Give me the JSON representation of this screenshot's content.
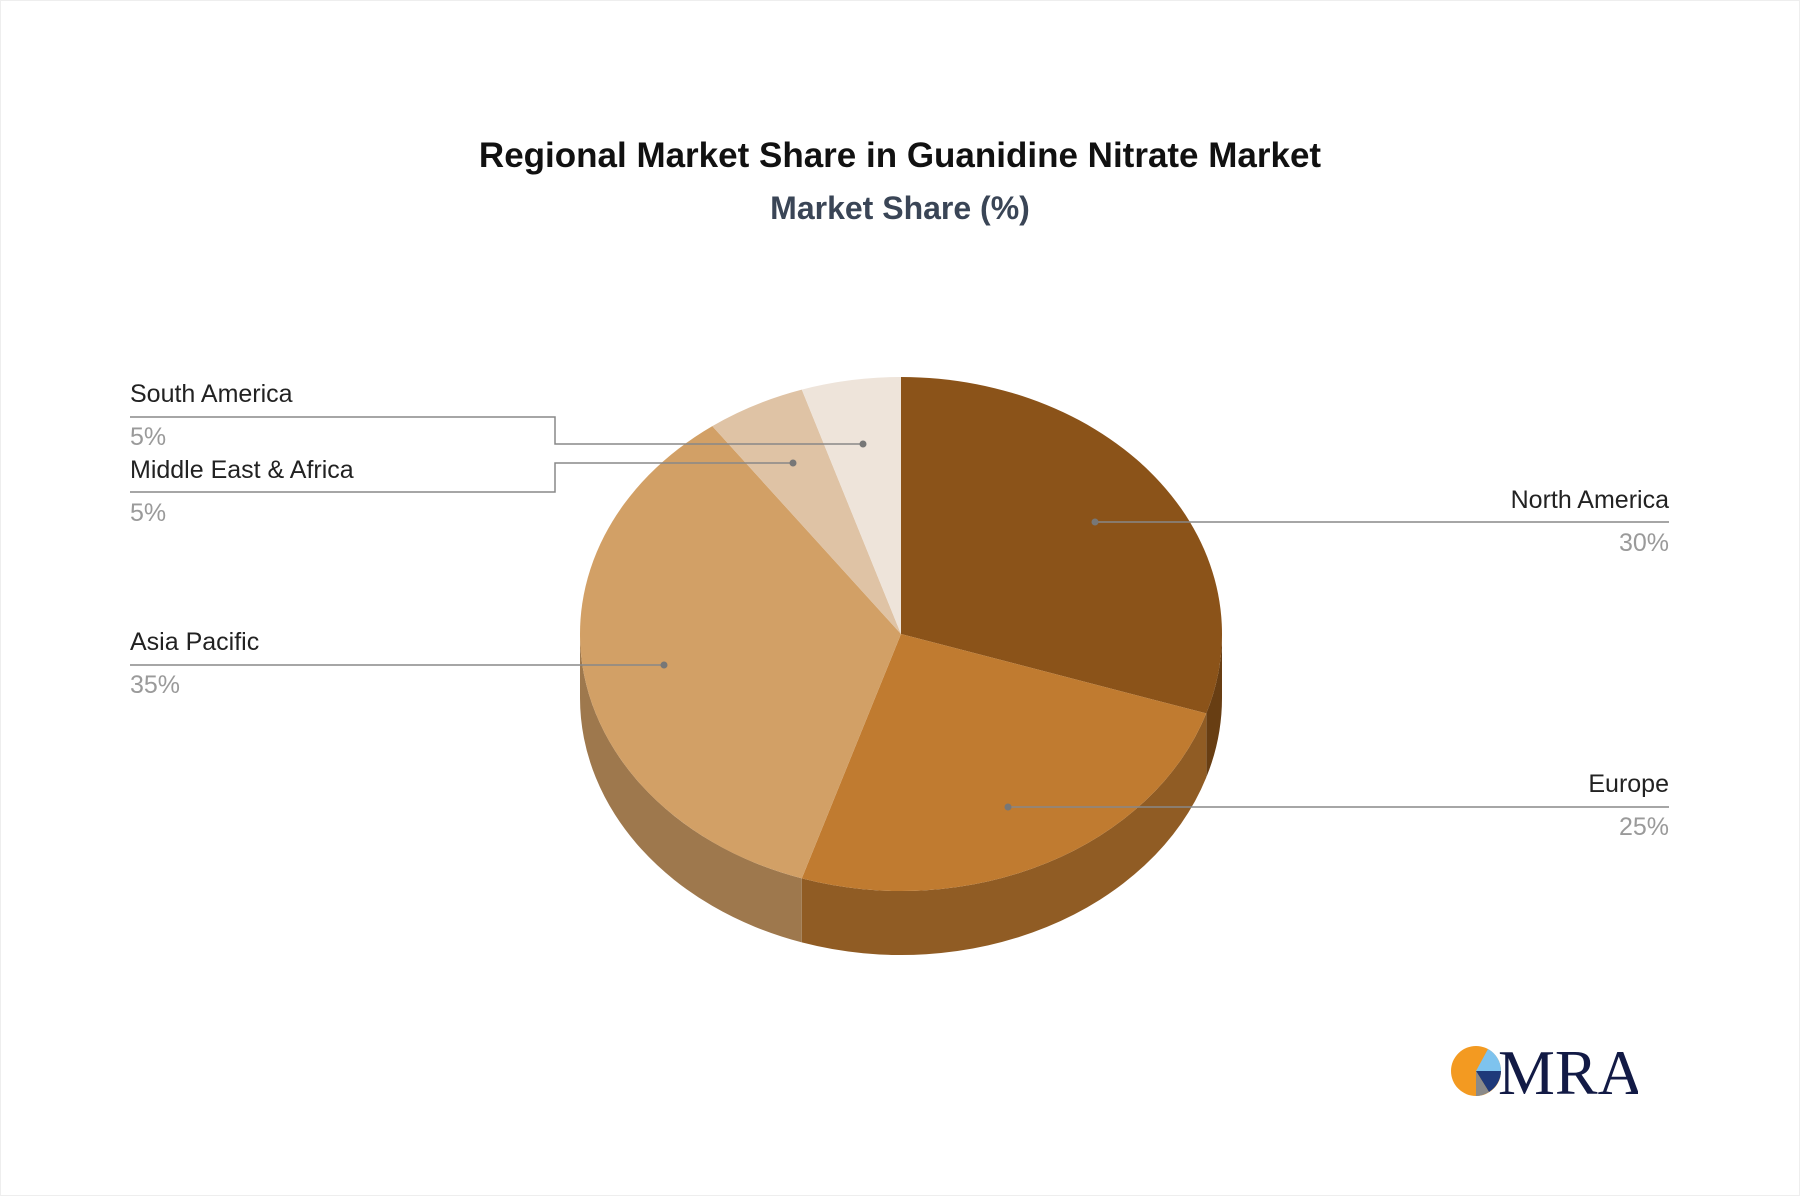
{
  "chart_data": {
    "type": "pie",
    "style": "3d",
    "title": "Regional Market Share in Guanidine Nitrate Market",
    "subtitle": "Market Share (%)",
    "categories": [
      "North America",
      "Europe",
      "Asia Pacific",
      "Middle East & Africa",
      "South America"
    ],
    "values": [
      30,
      25,
      35,
      5,
      5
    ],
    "value_labels": [
      "30%",
      "25%",
      "35%",
      "5%",
      "5%"
    ],
    "colors": [
      "#8B5319",
      "#C07B30",
      "#D2A066",
      "#DFC3A5",
      "#EEE4DA"
    ],
    "start_angle": "top",
    "direction": "clockwise"
  },
  "logo": {
    "text": "MRA",
    "colors": [
      "#F39A21",
      "#7EC3EE",
      "#1F3A7A",
      "#8A8A8A",
      "#121A45"
    ]
  }
}
